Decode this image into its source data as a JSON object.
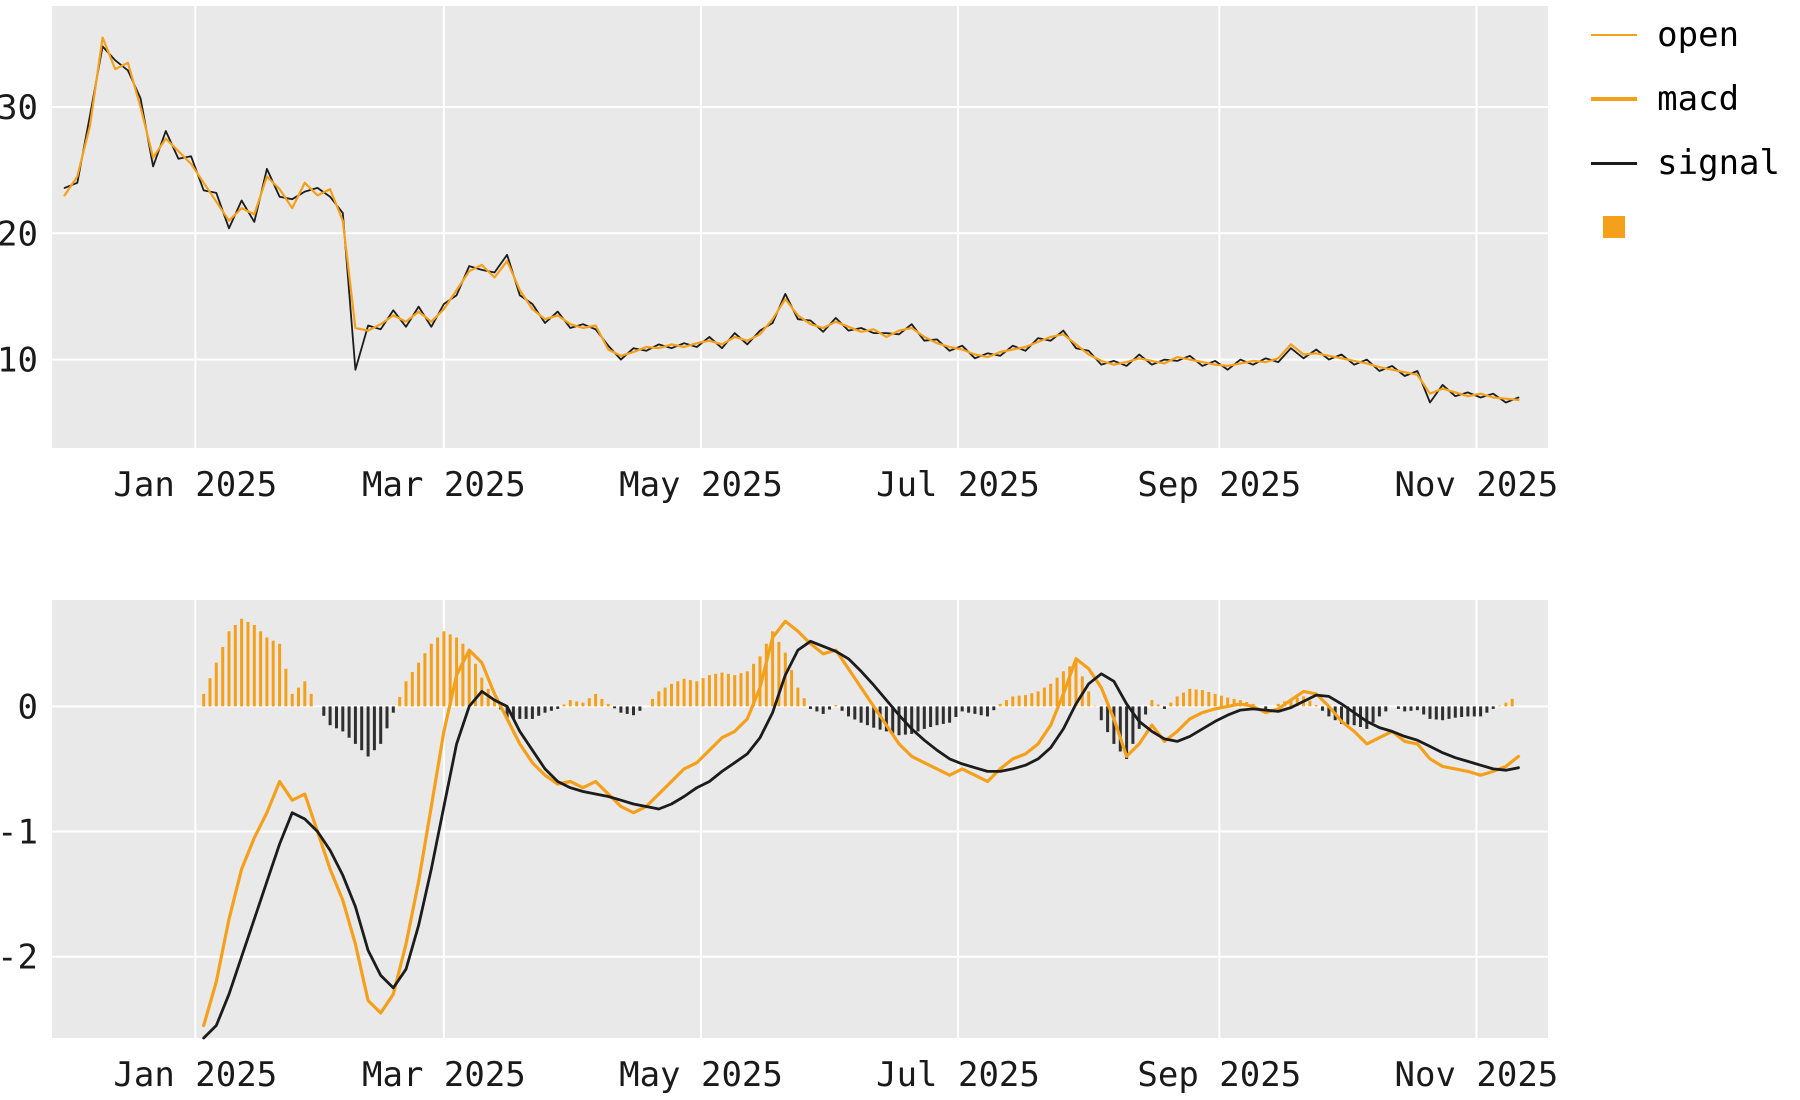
{
  "figure": {
    "background": "#ffffff",
    "panel_background": "#e9e9e9",
    "grid_color": "#ffffff",
    "tick_color": "#1a1a1a"
  },
  "colors": {
    "orange": "#f5a01a",
    "black": "#1c1c1c",
    "hist_negative": "#2f2f2f"
  },
  "legend": {
    "position": "upper right, outside plot area",
    "items": [
      {
        "label": "open",
        "type": "line-thin",
        "color": "#f5a01a"
      },
      {
        "label": "macd",
        "type": "line-thick",
        "color": "#f5a01a"
      },
      {
        "label": "signal",
        "type": "line-mid",
        "color": "#1c1c1c"
      },
      {
        "label": "",
        "type": "square",
        "color": "#f5a01a"
      }
    ]
  },
  "chart_data": {
    "type": "line",
    "title": "",
    "x_unit": "days since 2024-12-01",
    "xlim": [
      -3,
      352
    ],
    "grid": true,
    "x_ticks": [
      {
        "day": 31,
        "label": "Jan 2025"
      },
      {
        "day": 90,
        "label": "Mar 2025"
      },
      {
        "day": 151,
        "label": "May 2025"
      },
      {
        "day": 212,
        "label": "Jul 2025"
      },
      {
        "day": 274,
        "label": "Sep 2025"
      },
      {
        "day": 335,
        "label": "Nov 2025"
      }
    ],
    "x_days": [
      0,
      3,
      6,
      9,
      12,
      15,
      18,
      21,
      24,
      27,
      30,
      33,
      36,
      39,
      42,
      45,
      48,
      51,
      54,
      57,
      60,
      63,
      66,
      69,
      72,
      75,
      78,
      81,
      84,
      87,
      90,
      93,
      96,
      99,
      102,
      105,
      108,
      111,
      114,
      117,
      120,
      123,
      126,
      129,
      132,
      135,
      138,
      141,
      144,
      147,
      150,
      153,
      156,
      159,
      162,
      165,
      168,
      171,
      174,
      177,
      180,
      183,
      186,
      189,
      192,
      195,
      198,
      201,
      204,
      207,
      210,
      213,
      216,
      219,
      222,
      225,
      228,
      231,
      234,
      237,
      240,
      243,
      246,
      249,
      252,
      255,
      258,
      261,
      264,
      267,
      270,
      273,
      276,
      279,
      282,
      285,
      288,
      291,
      294,
      297,
      300,
      303,
      306,
      309,
      312,
      315,
      318,
      321,
      324,
      327,
      330,
      333,
      336,
      339,
      342,
      345
    ],
    "panels": [
      {
        "name": "price",
        "ylim": [
          3,
          38
        ],
        "y_ticks": [
          10,
          20,
          30
        ],
        "histogram": false,
        "series": [
          {
            "name": "price_line_black",
            "color": "#1c1c1c",
            "width": 1.8,
            "values": [
              23.6,
              24.0,
              29.3,
              34.8,
              33.7,
              32.9,
              30.7,
              25.3,
              28.1,
              25.9,
              26.1,
              23.4,
              23.2,
              20.4,
              22.6,
              20.9,
              25.1,
              22.9,
              22.7,
              23.3,
              23.6,
              22.9,
              21.6,
              9.2,
              12.7,
              12.4,
              13.9,
              12.6,
              14.2,
              12.6,
              14.4,
              15.1,
              17.4,
              17.1,
              16.9,
              18.3,
              15.1,
              14.4,
              12.9,
              13.8,
              12.5,
              12.8,
              12.4,
              11.1,
              10.0,
              10.9,
              10.7,
              11.2,
              10.9,
              11.3,
              11.0,
              11.8,
              10.9,
              12.1,
              11.2,
              12.3,
              12.9,
              15.2,
              13.2,
              13.1,
              12.2,
              13.3,
              12.3,
              12.5,
              12.1,
              12.1,
              12.0,
              12.8,
              11.5,
              11.6,
              10.7,
              11.1,
              10.1,
              10.5,
              10.3,
              11.1,
              10.7,
              11.7,
              11.5,
              12.3,
              10.9,
              10.7,
              9.6,
              9.9,
              9.5,
              10.4,
              9.6,
              10.0,
              9.9,
              10.3,
              9.5,
              9.9,
              9.2,
              10.0,
              9.6,
              10.1,
              9.8,
              10.9,
              10.1,
              10.8,
              10.0,
              10.4,
              9.6,
              10.0,
              9.1,
              9.5,
              8.7,
              9.1,
              6.6,
              8.0,
              7.1,
              7.4,
              7.0,
              7.3,
              6.6,
              7.0
            ]
          },
          {
            "name": "open",
            "color": "#f5a01a",
            "width": 2.2,
            "values": [
              23.0,
              24.5,
              28.5,
              35.5,
              33.0,
              33.5,
              30.0,
              26.0,
              27.5,
              26.5,
              25.5,
              24.0,
              22.5,
              21.0,
              22.0,
              21.5,
              24.5,
              23.5,
              22.0,
              24.0,
              23.0,
              23.5,
              21.0,
              12.5,
              12.3,
              12.8,
              13.5,
              13.0,
              13.8,
              13.0,
              14.0,
              15.5,
              17.0,
              17.5,
              16.5,
              17.8,
              15.5,
              14.0,
              13.2,
              13.5,
              12.8,
              12.5,
              12.7,
              10.8,
              10.3,
              10.6,
              11.0,
              10.9,
              11.2,
              11.0,
              11.3,
              11.5,
              11.2,
              11.8,
              11.5,
              12.0,
              13.2,
              14.8,
              13.5,
              12.8,
              12.5,
              13.0,
              12.6,
              12.2,
              12.4,
              11.8,
              12.3,
              12.5,
              11.8,
              11.3,
              11.0,
              10.8,
              10.4,
              10.2,
              10.6,
              10.8,
              11.0,
              11.4,
              11.8,
              12.0,
              11.2,
              10.4,
              9.9,
              9.6,
              9.8,
              10.1,
              9.9,
              9.7,
              10.2,
              10.0,
              9.8,
              9.6,
              9.5,
              9.7,
              9.9,
              9.8,
              10.1,
              11.2,
              10.4,
              10.5,
              10.3,
              10.1,
              9.9,
              9.7,
              9.4,
              9.2,
              9.0,
              8.8,
              7.3,
              7.7,
              7.4,
              7.1,
              7.3,
              7.0,
              6.9,
              6.8
            ]
          }
        ]
      },
      {
        "name": "macd",
        "ylim": [
          -2.65,
          0.85
        ],
        "y_ticks": [
          0,
          -1,
          -2
        ],
        "histogram": true,
        "histogram_formula": "macd - signal",
        "series": [
          {
            "name": "macd",
            "color": "#f5a01a",
            "width": 3.2,
            "values": [
              null,
              null,
              null,
              null,
              null,
              null,
              null,
              null,
              null,
              null,
              null,
              -2.55,
              -2.2,
              -1.7,
              -1.3,
              -1.05,
              -0.85,
              -0.6,
              -0.75,
              -0.7,
              -1.0,
              -1.3,
              -1.55,
              -1.9,
              -2.35,
              -2.45,
              -2.3,
              -1.9,
              -1.4,
              -0.8,
              -0.2,
              0.25,
              0.45,
              0.35,
              0.1,
              -0.1,
              -0.3,
              -0.45,
              -0.55,
              -0.62,
              -0.6,
              -0.65,
              -0.6,
              -0.7,
              -0.8,
              -0.85,
              -0.8,
              -0.7,
              -0.6,
              -0.5,
              -0.45,
              -0.35,
              -0.25,
              -0.2,
              -0.1,
              0.15,
              0.55,
              0.68,
              0.6,
              0.5,
              0.42,
              0.45,
              0.3,
              0.15,
              0.0,
              -0.15,
              -0.3,
              -0.4,
              -0.45,
              -0.5,
              -0.55,
              -0.5,
              -0.55,
              -0.6,
              -0.5,
              -0.42,
              -0.38,
              -0.3,
              -0.15,
              0.1,
              0.38,
              0.3,
              0.15,
              -0.1,
              -0.4,
              -0.3,
              -0.15,
              -0.28,
              -0.2,
              -0.1,
              -0.05,
              -0.02,
              0.0,
              0.02,
              0.0,
              -0.05,
              -0.02,
              0.05,
              0.12,
              0.1,
              0.0,
              -0.12,
              -0.2,
              -0.3,
              -0.25,
              -0.2,
              -0.28,
              -0.3,
              -0.42,
              -0.48,
              -0.5,
              -0.52,
              -0.55,
              -0.52,
              -0.48,
              -0.4
            ]
          },
          {
            "name": "signal",
            "color": "#1c1c1c",
            "width": 2.8,
            "values": [
              null,
              null,
              null,
              null,
              null,
              null,
              null,
              null,
              null,
              null,
              null,
              -2.65,
              -2.55,
              -2.3,
              -2.0,
              -1.7,
              -1.4,
              -1.1,
              -0.85,
              -0.9,
              -1.0,
              -1.15,
              -1.35,
              -1.6,
              -1.95,
              -2.15,
              -2.25,
              -2.1,
              -1.75,
              -1.3,
              -0.8,
              -0.3,
              0.0,
              0.12,
              0.05,
              0.0,
              -0.2,
              -0.35,
              -0.5,
              -0.6,
              -0.65,
              -0.68,
              -0.7,
              -0.72,
              -0.75,
              -0.78,
              -0.8,
              -0.82,
              -0.78,
              -0.72,
              -0.65,
              -0.6,
              -0.52,
              -0.45,
              -0.38,
              -0.25,
              -0.05,
              0.25,
              0.45,
              0.52,
              0.48,
              0.44,
              0.38,
              0.28,
              0.17,
              0.05,
              -0.07,
              -0.18,
              -0.27,
              -0.35,
              -0.42,
              -0.46,
              -0.49,
              -0.52,
              -0.52,
              -0.5,
              -0.47,
              -0.42,
              -0.33,
              -0.18,
              0.02,
              0.18,
              0.26,
              0.2,
              0.02,
              -0.12,
              -0.2,
              -0.26,
              -0.28,
              -0.24,
              -0.18,
              -0.12,
              -0.07,
              -0.03,
              -0.02,
              -0.03,
              -0.04,
              -0.01,
              0.04,
              0.09,
              0.08,
              0.02,
              -0.05,
              -0.12,
              -0.17,
              -0.2,
              -0.24,
              -0.27,
              -0.32,
              -0.37,
              -0.41,
              -0.44,
              -0.47,
              -0.5,
              -0.51,
              -0.49
            ]
          }
        ]
      }
    ]
  }
}
